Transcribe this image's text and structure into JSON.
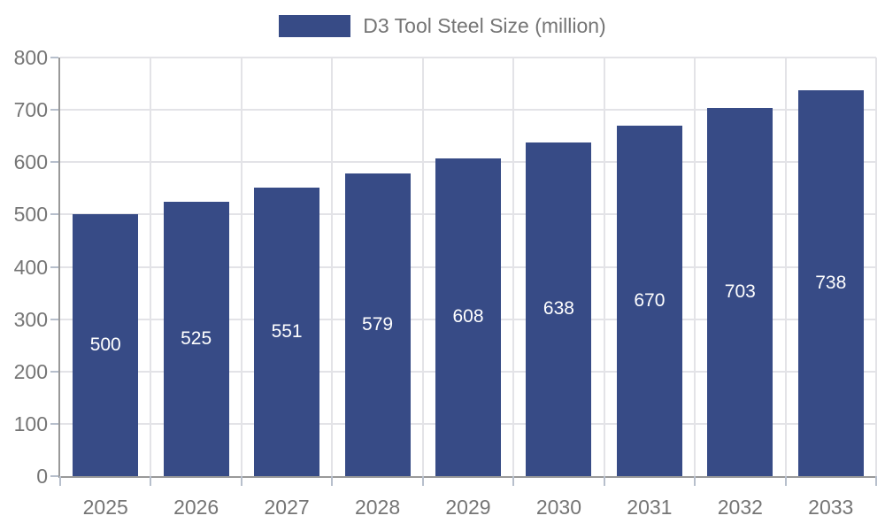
{
  "legend": {
    "series_label": "D3 Tool Steel Size (million)"
  },
  "colors": {
    "background": "#ffffff",
    "bar_fill": "#374b86",
    "bar_value_text": "#ffffff",
    "axis_line": "#999999",
    "tick_mark": "#b7bfcc",
    "tick_label_text": "#757575",
    "grid_line": "#e3e3e7",
    "legend_text": "#757575"
  },
  "chart_data": {
    "type": "bar",
    "title": "",
    "series_name": "D3 Tool Steel Size (million)",
    "categories": [
      "2025",
      "2026",
      "2027",
      "2028",
      "2029",
      "2030",
      "2031",
      "2032",
      "2033"
    ],
    "values": [
      500,
      525,
      551,
      579,
      608,
      638,
      670,
      703,
      738
    ],
    "xlabel": "",
    "ylabel": "",
    "ylim": [
      0,
      800
    ],
    "ytick_step": 100,
    "yticks": [
      0,
      100,
      200,
      300,
      400,
      500,
      600,
      700,
      800
    ],
    "grid": "horizontal-and-vertical",
    "legend_position": "top-center",
    "value_labels": "inside-bar, vertically-centered, white"
  }
}
